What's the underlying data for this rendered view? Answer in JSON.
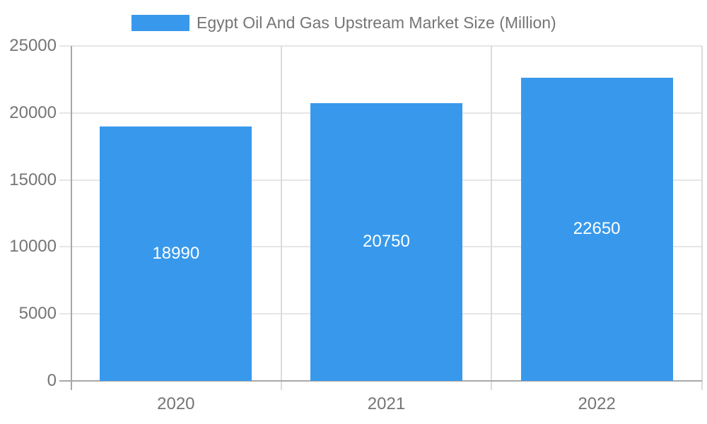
{
  "chart_data": {
    "type": "bar",
    "title": "Egypt Oil And Gas Upstream Market Size (Million)",
    "categories": [
      "2020",
      "2021",
      "2022"
    ],
    "series": [
      {
        "name": "Egypt Oil And Gas Upstream Market Size (Million)",
        "values": [
          18990,
          20750,
          22650
        ]
      }
    ],
    "bar_labels": [
      "18990",
      "20750",
      "22650"
    ],
    "xlabel": "",
    "ylabel": "",
    "ylim": [
      0,
      25000
    ],
    "yticks": [
      0,
      5000,
      10000,
      15000,
      20000,
      25000
    ],
    "ytick_labels": [
      "0",
      "5000",
      "10000",
      "15000",
      "20000",
      "25000"
    ],
    "grid": true,
    "legend_position": "top-center"
  },
  "colors": {
    "bar": "#3899EC",
    "bar_label_text": "#FFFFFF",
    "axis_text": "#757575",
    "gridline_horizontal": "#E6E6E6",
    "gridline_vertical": "#DBDBDB",
    "axis_line": "#A8A8A8",
    "background": "#FFFFFF"
  }
}
